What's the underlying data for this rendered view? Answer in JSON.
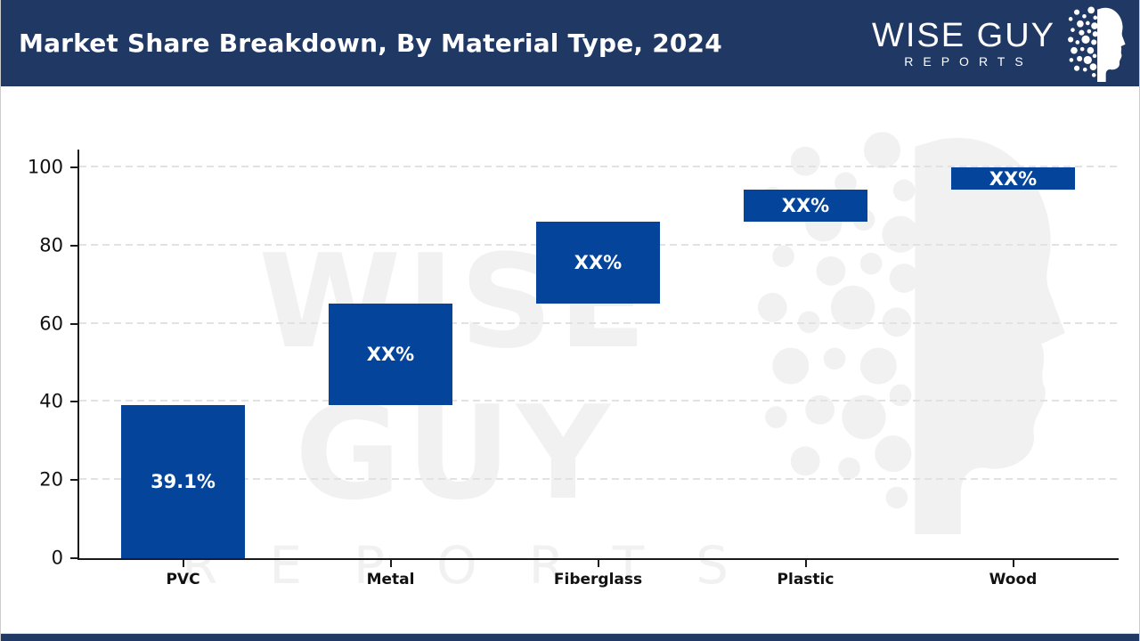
{
  "header": {
    "title": "Market Share Breakdown, By Material Type, 2024",
    "logo": {
      "line1": "WISE GUY",
      "line2": "REPORTS"
    }
  },
  "watermark": {
    "line1": "WISE GUY",
    "line2": "REPORTS"
  },
  "chart_data": {
    "type": "bar",
    "subtype": "waterfall",
    "title": "Market Share Breakdown, By Material Type, 2024",
    "categories": [
      "PVC",
      "Metal",
      "Fiberglass",
      "Plastic",
      "Wood"
    ],
    "segments": [
      {
        "category": "PVC",
        "start": 0,
        "end": 39.1,
        "label": "39.1%"
      },
      {
        "category": "Metal",
        "start": 39.1,
        "end": 65.2,
        "label": "XX%"
      },
      {
        "category": "Fiberglass",
        "start": 65.2,
        "end": 86.2,
        "label": "XX%"
      },
      {
        "category": "Plastic",
        "start": 86.2,
        "end": 94.2,
        "label": "XX%"
      },
      {
        "category": "Wood",
        "start": 94.2,
        "end": 100,
        "label": "XX%"
      }
    ],
    "yticks": [
      0,
      20,
      40,
      60,
      80,
      100
    ],
    "ylim": [
      0,
      105
    ],
    "xlabel": "",
    "ylabel": "",
    "grid": true,
    "grid_style": "dashed",
    "legend": false,
    "bar_color": "#04449b",
    "bar_label_color": "#ffffff",
    "bar_width_pct": 12
  },
  "colors": {
    "header_bg": "#203864",
    "footer_bg": "#203864",
    "axis": "#1a1a1a",
    "gridline": "#e2e2e2",
    "watermark": "#f1f1f1"
  }
}
